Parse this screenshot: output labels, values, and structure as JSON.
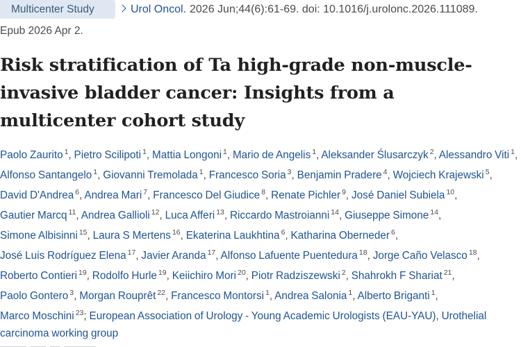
{
  "header": {
    "article_type": "Multicenter Study",
    "journal": "Urol Oncol.",
    "citation": "2026 Jun;44(6):61-69. doi: 10.1016/j.urolonc.2026.111089.",
    "epub": "Epub 2026 Apr 2."
  },
  "title": "Risk stratification of Ta high-grade non-muscle-invasive bladder cancer: Insights from a multicenter cohort study",
  "authors": [
    {
      "name": "Paolo Zaurito",
      "aff": "1"
    },
    {
      "name": "Pietro Scilipoti",
      "aff": "1"
    },
    {
      "name": "Mattia Longoni",
      "aff": "1"
    },
    {
      "name": "Mario de Angelis",
      "aff": "1"
    },
    {
      "name": "Aleksander Ślusarczyk",
      "aff": "2"
    },
    {
      "name": "Alessandro Viti",
      "aff": "1"
    },
    {
      "name": "Alfonso Santangelo",
      "aff": "1"
    },
    {
      "name": "Giovanni Tremolada",
      "aff": "1"
    },
    {
      "name": "Francesco Soria",
      "aff": "3"
    },
    {
      "name": "Benjamin Pradere",
      "aff": "4"
    },
    {
      "name": "Wojciech Krajewski",
      "aff": "5"
    },
    {
      "name": "David D'Andrea",
      "aff": "6"
    },
    {
      "name": "Andrea Mari",
      "aff": "7"
    },
    {
      "name": "Francesco Del Giudice",
      "aff": "8"
    },
    {
      "name": "Renate Pichler",
      "aff": "9"
    },
    {
      "name": "José Daniel Subiela",
      "aff": "10"
    },
    {
      "name": "Gautier Marcq",
      "aff": "11"
    },
    {
      "name": "Andrea Gallioli",
      "aff": "12"
    },
    {
      "name": "Luca Afferi",
      "aff": "13"
    },
    {
      "name": "Riccardo Mastroianni",
      "aff": "14"
    },
    {
      "name": "Giuseppe Simone",
      "aff": "14"
    },
    {
      "name": "Simone Albisinni",
      "aff": "15"
    },
    {
      "name": "Laura S Mertens",
      "aff": "16"
    },
    {
      "name": "Ekaterina Laukhtina",
      "aff": "6"
    },
    {
      "name": "Katharina Oberneder",
      "aff": "6"
    },
    {
      "name": "José Luis Rodríguez Elena",
      "aff": "17"
    },
    {
      "name": "Javier Aranda",
      "aff": "17"
    },
    {
      "name": "Alfonso Lafuente Puentedura",
      "aff": "18"
    },
    {
      "name": "Jorge Caño Velasco",
      "aff": "18"
    },
    {
      "name": "Roberto Contieri",
      "aff": "19"
    },
    {
      "name": "Rodolfo Hurle",
      "aff": "19"
    },
    {
      "name": "Keiichiro Mori",
      "aff": "20"
    },
    {
      "name": "Piotr Radziszewski",
      "aff": "2"
    },
    {
      "name": "Shahrokh F Shariat",
      "aff": "21"
    },
    {
      "name": "Paolo Gontero",
      "aff": "3"
    },
    {
      "name": "Morgan Rouprêt",
      "aff": "22"
    },
    {
      "name": "Francesco Montorsi",
      "aff": "1"
    },
    {
      "name": "Andrea Salonia",
      "aff": "1"
    },
    {
      "name": "Alberto Briganti",
      "aff": "1"
    },
    {
      "name": "Marco Moschini",
      "aff": "23"
    }
  ],
  "collaboration": "European Association of Urology - Young Academic Urologists (EAU-YAU), Urothelial carcinoma working group"
}
